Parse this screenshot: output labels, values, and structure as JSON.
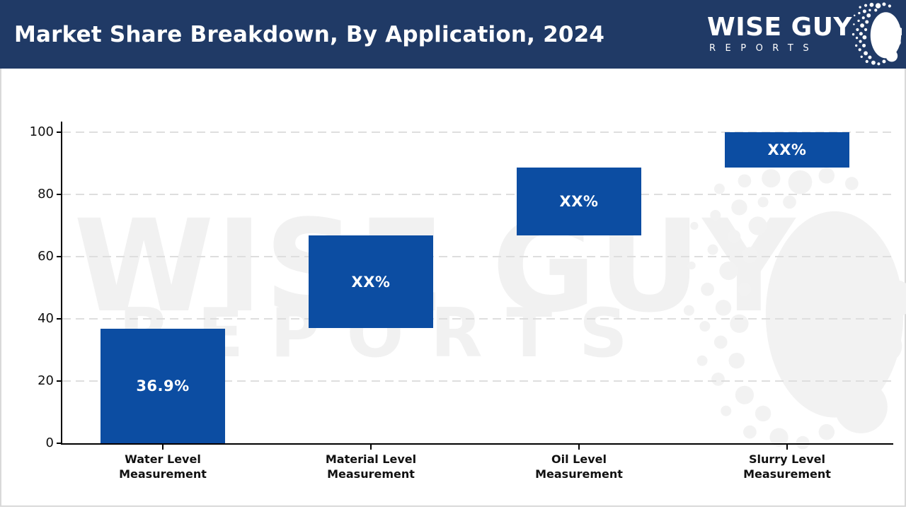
{
  "header": {
    "title": "Market Share Breakdown, By Application, 2024",
    "bg_color": "#203a66",
    "logo": {
      "line1": "WISE GUY",
      "line2": "REPORTS"
    }
  },
  "watermark": {
    "line1": "WISE GUY",
    "line2": "REPORTS"
  },
  "chart_data": {
    "type": "bar",
    "subtype": "waterfall",
    "title": "Market Share Breakdown, By Application, 2024",
    "categories": [
      "Water Level\nMeasurement",
      "Material Level\nMeasurement",
      "Oil Level\nMeasurement",
      "Slurry Level\nMeasurement"
    ],
    "series": [
      {
        "name": "Market share",
        "segments": [
          {
            "category": "Water Level Measurement",
            "start": 0,
            "end": 36.9,
            "value": 36.9,
            "label": "36.9%"
          },
          {
            "category": "Material Level Measurement",
            "start": 37.0,
            "end": 66.8,
            "value": 29.8,
            "label": "XX%"
          },
          {
            "category": "Oil Level Measurement",
            "start": 66.8,
            "end": 88.7,
            "value": 21.9,
            "label": "XX%"
          },
          {
            "category": "Slurry Level Measurement",
            "start": 88.7,
            "end": 100,
            "value": 11.3,
            "label": "XX%"
          }
        ]
      }
    ],
    "ylim": [
      0,
      100
    ],
    "yticks": [
      "0",
      "20",
      "40",
      "60",
      "80",
      "100"
    ],
    "grid": "horizontal-dashed",
    "legend": "none",
    "bar_color": "#0c4da2",
    "bar_label_color": "#ffffff",
    "axis_color": "#000000",
    "gridline_color": "#dedede",
    "watermark_color": "#f1f1f1"
  }
}
